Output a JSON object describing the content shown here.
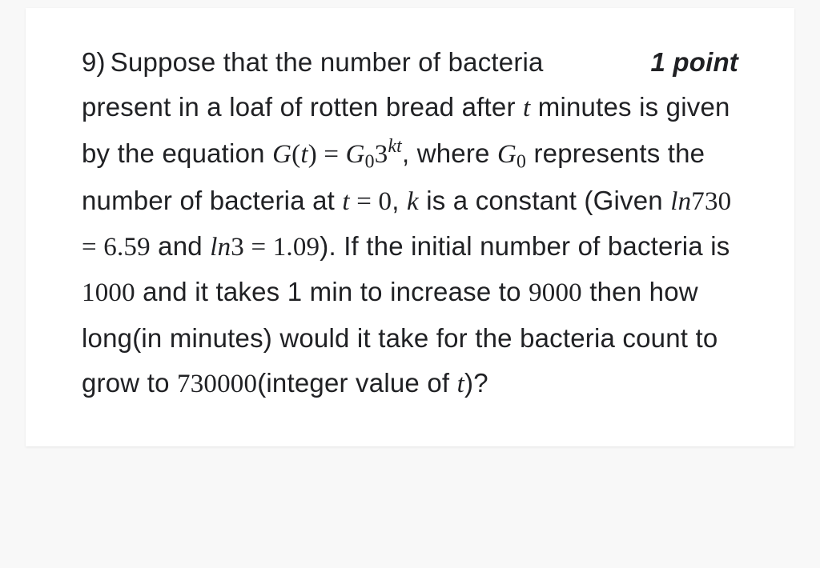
{
  "question": {
    "number": "9)",
    "points_label": "1 point",
    "lead": "Suppose that the number of",
    "body_1": "bacteria present in a loaf of rotten bread after ",
    "t": "t",
    "body_2": " minutes is given by the equation ",
    "Gt": "G",
    "lpar": "(",
    "t2": "t",
    "rpar": ")",
    "eq": " = ",
    "G0a": "G",
    "zero": "0",
    "three": "3",
    "kt": "kt",
    "body_3": ", where ",
    "G0b": "G",
    "zero2": "0",
    "body_4": " represents the number of bacteria at ",
    "t3": "t",
    "eq0": " = 0",
    "body_5": ", ",
    "k": "k",
    "body_6": " is a constant (Given ",
    "ln1": "ln",
    "v730": "730 = 6.59",
    "and": " and ",
    "ln2": "ln",
    "v3": "3 = 1.09",
    "body_7": "). If the initial number of bacteria is ",
    "n1000": "1000",
    "body_8": " and it takes 1 min to increase to ",
    "n9000": "9000",
    "body_9": " then how long(in minutes) would it take for the bacteria count to grow to ",
    "n730000": "730000",
    "body_10": "(integer value of ",
    "t4": "t",
    "body_11": ")?"
  }
}
